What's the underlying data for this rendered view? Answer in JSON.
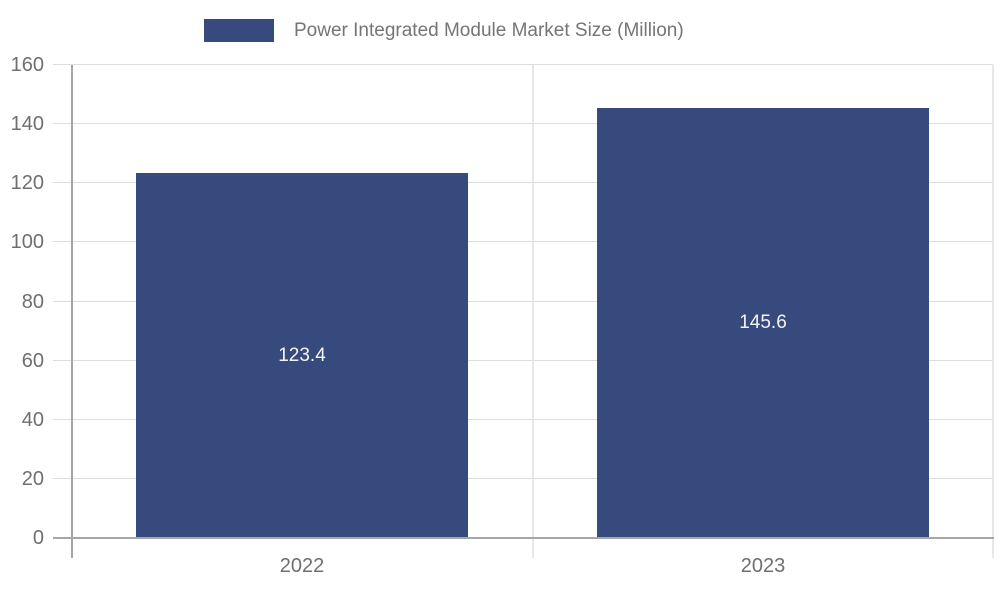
{
  "legend": {
    "label": "Power Integrated Module Market Size (Million)"
  },
  "chart_data": {
    "type": "bar",
    "title": "Power Integrated Module Market Size (Million)",
    "categories": [
      "2022",
      "2023"
    ],
    "series": [
      {
        "name": "Power Integrated Module Market Size (Million)",
        "values": [
          123.4,
          145.6
        ]
      }
    ],
    "data_labels": [
      "123.4",
      "145.6"
    ],
    "xlabel": "",
    "ylabel": "",
    "ylim": [
      0,
      160
    ],
    "ytick_interval": 20,
    "ytick_labels": [
      "0",
      "20",
      "40",
      "60",
      "80",
      "100",
      "120",
      "140",
      "160"
    ],
    "grid": true,
    "legend_position": "top-center",
    "colors": {
      "bar": "#364A7E",
      "grid": "#DDDDDD",
      "axis": "#A6A6A6",
      "tick_text": "#6F6F6F",
      "legend_text": "#757575",
      "data_label": "#F5F5F5",
      "background": "#FFFFFF"
    }
  }
}
